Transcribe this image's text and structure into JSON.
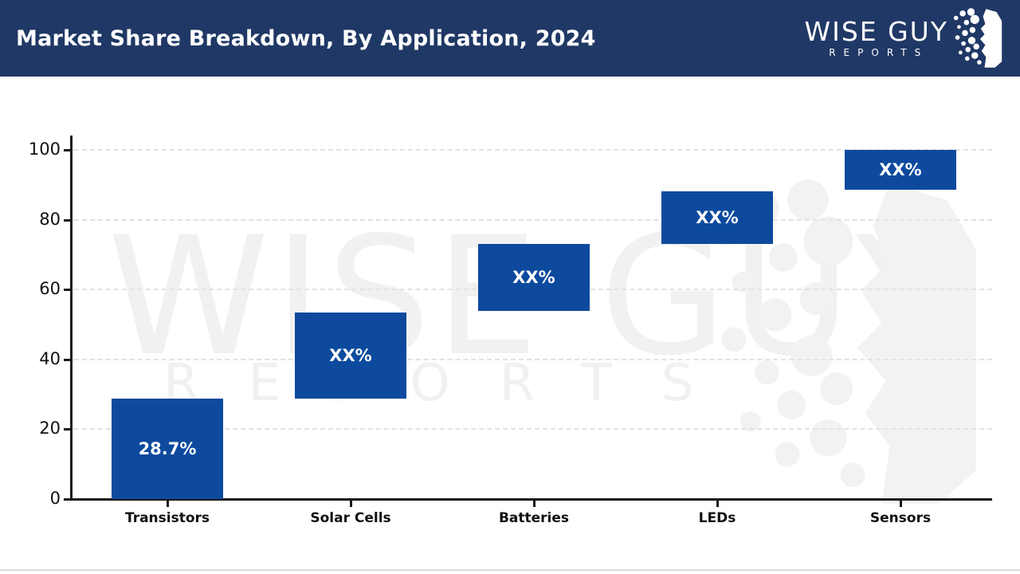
{
  "header": {
    "title": "Market Share Breakdown, By Application, 2024",
    "logo": {
      "line1": "WISE GUY",
      "line2": "REPORTS"
    }
  },
  "watermark": {
    "line1": "WISE GUY",
    "line2": "REPORTS"
  },
  "colors": {
    "header_bg": "#203865",
    "bar": "#0d4a9e",
    "bar_label": "#ffffff",
    "axis": "#1a1a1a",
    "grid": "#e3e3e3",
    "watermark": "#f1f1f1"
  },
  "chart_data": {
    "type": "bar",
    "variant": "waterfall-floating-bars",
    "title": "Market Share Breakdown, By Application, 2024",
    "categories": [
      "Transistors",
      "Solar Cells",
      "Batteries",
      "LEDs",
      "Sensors"
    ],
    "segments": [
      {
        "category": "Transistors",
        "from": 0,
        "to": 28.7,
        "label": "28.7%"
      },
      {
        "category": "Solar Cells",
        "from": 28.7,
        "to": 53.4,
        "label": "XX%"
      },
      {
        "category": "Batteries",
        "from": 53.8,
        "to": 73.0,
        "label": "XX%"
      },
      {
        "category": "LEDs",
        "from": 73.0,
        "to": 88.2,
        "label": "XX%"
      },
      {
        "category": "Sensors",
        "from": 88.6,
        "to": 100.0,
        "label": "XX%"
      }
    ],
    "y_ticks": [
      0,
      20,
      40,
      60,
      80,
      100
    ],
    "ylim": [
      0,
      104
    ],
    "xlabel": "",
    "ylabel": "",
    "legend": null,
    "grid": "horizontal-dashed"
  }
}
